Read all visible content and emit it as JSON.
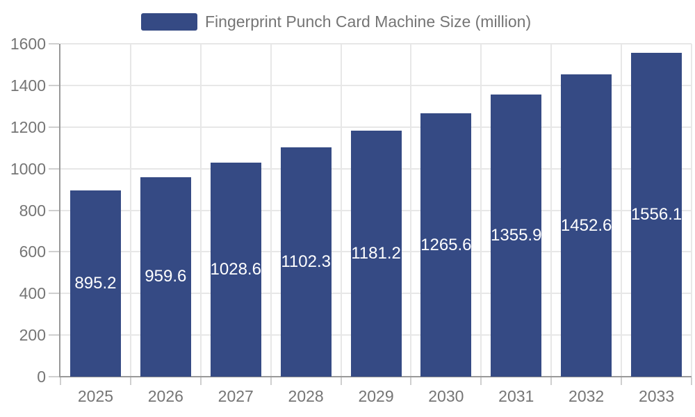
{
  "chart_data": {
    "type": "bar",
    "title": "Fingerprint Punch Card Machine Size (million)",
    "series_name": "Fingerprint Punch Card Machine Size (million)",
    "categories": [
      "2025",
      "2026",
      "2027",
      "2028",
      "2029",
      "2030",
      "2031",
      "2032",
      "2033"
    ],
    "values": [
      895.2,
      959.6,
      1028.6,
      1102.3,
      1181.2,
      1265.6,
      1355.9,
      1452.6,
      1556.1
    ],
    "xlabel": "",
    "ylabel": "",
    "ylim": [
      0,
      1600
    ],
    "yticks": [
      0,
      200,
      400,
      600,
      800,
      1000,
      1200,
      1400,
      1600
    ],
    "grid": true,
    "legend_position": "top",
    "bar_color": "#354a84",
    "value_label_color": "#ffffff",
    "axis_label_color": "#757575",
    "legend_text_color": "#757575",
    "gridline_color": "#e7e7e7",
    "tick_color": "#cfcfcf",
    "axis_line_color": "#999999",
    "background_color": "#ffffff"
  }
}
